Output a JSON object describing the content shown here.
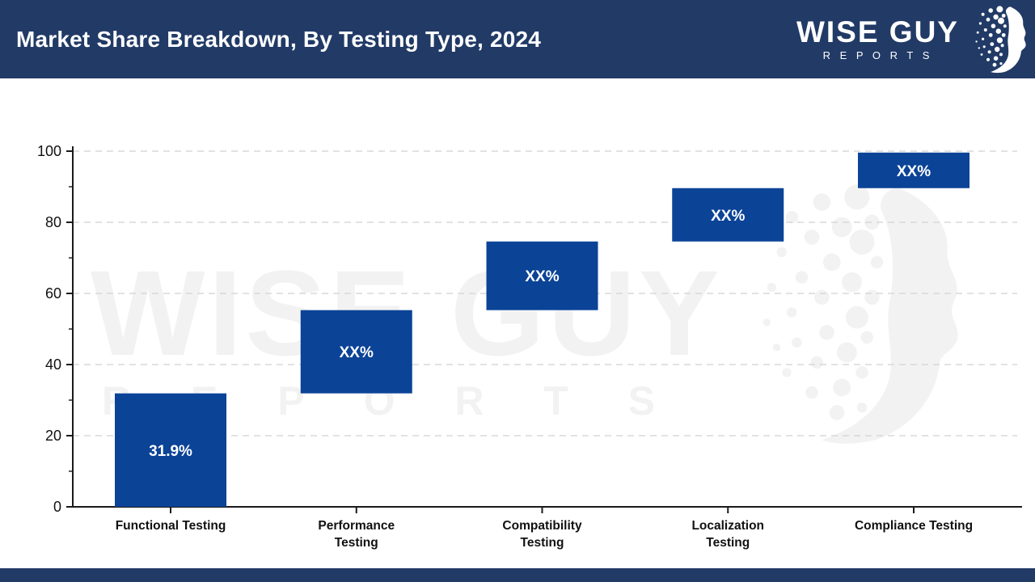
{
  "header": {
    "title": "Market Share Breakdown, By Testing Type, 2024",
    "logo": {
      "line1": "WISE GUY",
      "line2": "R E P O R T S"
    }
  },
  "watermark": {
    "line1": "WISE GUY",
    "line2": "R E P O R T S"
  },
  "colors": {
    "navy": "#213a66",
    "bar": "#0b4397",
    "bar_label": "#ffffff",
    "grid": "#d8d8d8",
    "axis": "#1a1a1a",
    "tick_label": "#111111",
    "watermark": "#f2f2f2"
  },
  "chart_data": {
    "type": "bar",
    "subtype": "waterfall",
    "title": "Market Share Breakdown, By Testing Type, 2024",
    "xlabel": "",
    "ylabel": "",
    "ylim": [
      0,
      105
    ],
    "yticks": [
      0,
      20,
      40,
      60,
      80,
      100
    ],
    "grid": "horizontal-dashed",
    "legend": "none",
    "categories": [
      "Functional Testing",
      "Performance Testing",
      "Compatibility Testing",
      "Localization Testing",
      "Compliance Testing"
    ],
    "segments": [
      {
        "category": "Functional Testing",
        "label_lines": [
          "Functional Testing"
        ],
        "start": 0,
        "end": 31.9,
        "value_label": "31.9%"
      },
      {
        "category": "Performance Testing",
        "label_lines": [
          "Performance",
          "Testing"
        ],
        "start": 31.9,
        "end": 55.3,
        "value_label": "XX%"
      },
      {
        "category": "Compatibility Testing",
        "label_lines": [
          "Compatibility",
          "Testing"
        ],
        "start": 55.3,
        "end": 74.6,
        "value_label": "XX%"
      },
      {
        "category": "Localization Testing",
        "label_lines": [
          "Localization",
          "Testing"
        ],
        "start": 74.6,
        "end": 89.6,
        "value_label": "XX%"
      },
      {
        "category": "Compliance Testing",
        "label_lines": [
          "Compliance Testing"
        ],
        "start": 89.6,
        "end": 99.6,
        "value_label": "XX%"
      }
    ]
  }
}
